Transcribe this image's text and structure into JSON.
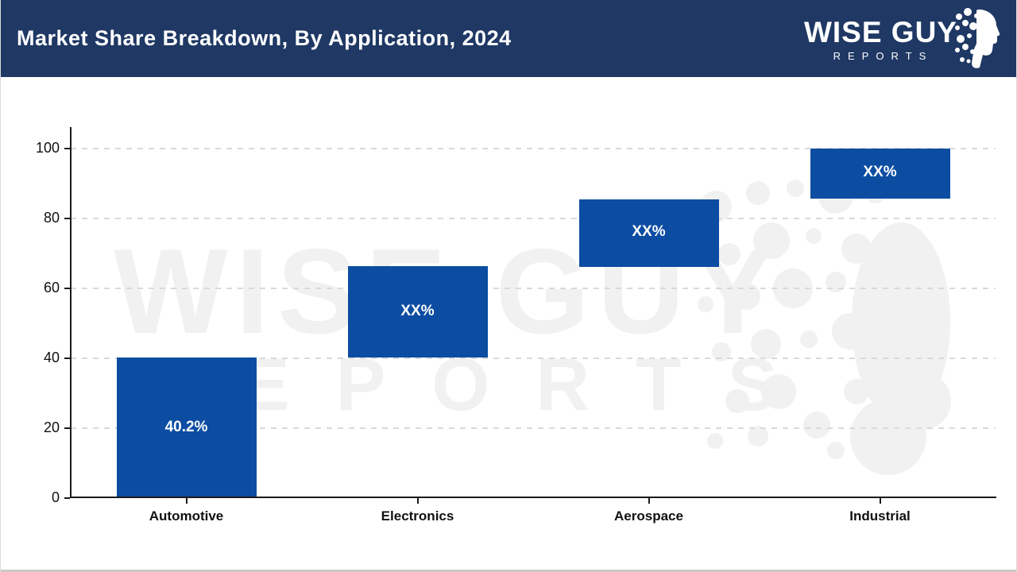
{
  "header": {
    "title": "Market Share Breakdown, By Application, 2024",
    "bg_color": "#1f3864",
    "text_color": "#ffffff"
  },
  "logo": {
    "line1": "WISE GUY",
    "line2": "REPORTS"
  },
  "watermark": {
    "line1": "WISE GUY",
    "line2": "REPORTS"
  },
  "chart_data": {
    "type": "bar",
    "subtype": "waterfall",
    "title": "Market Share Breakdown, By Application, 2024",
    "categories": [
      "Automotive",
      "Electronics",
      "Aerospace",
      "Industrial"
    ],
    "segments": [
      {
        "category": "Automotive",
        "from": 0,
        "to": 40.2,
        "label": "40.2%"
      },
      {
        "category": "Electronics",
        "from": 40.2,
        "to": 66.3,
        "label": "XX%"
      },
      {
        "category": "Aerospace",
        "from": 66.1,
        "to": 85.5,
        "label": "XX%"
      },
      {
        "category": "Industrial",
        "from": 85.7,
        "to": 100,
        "label": "XX%"
      }
    ],
    "xlabel": "",
    "ylabel": "",
    "ylim": [
      0,
      100
    ],
    "yticks": [
      0,
      20,
      40,
      60,
      80,
      100
    ],
    "grid": true,
    "grid_style": "dashed",
    "grid_color": "#d9d9d9",
    "bar_color": "#0c4da2",
    "bar_label_color": "#ffffff",
    "axis_color": "#1a1a1a",
    "legend": "none"
  }
}
